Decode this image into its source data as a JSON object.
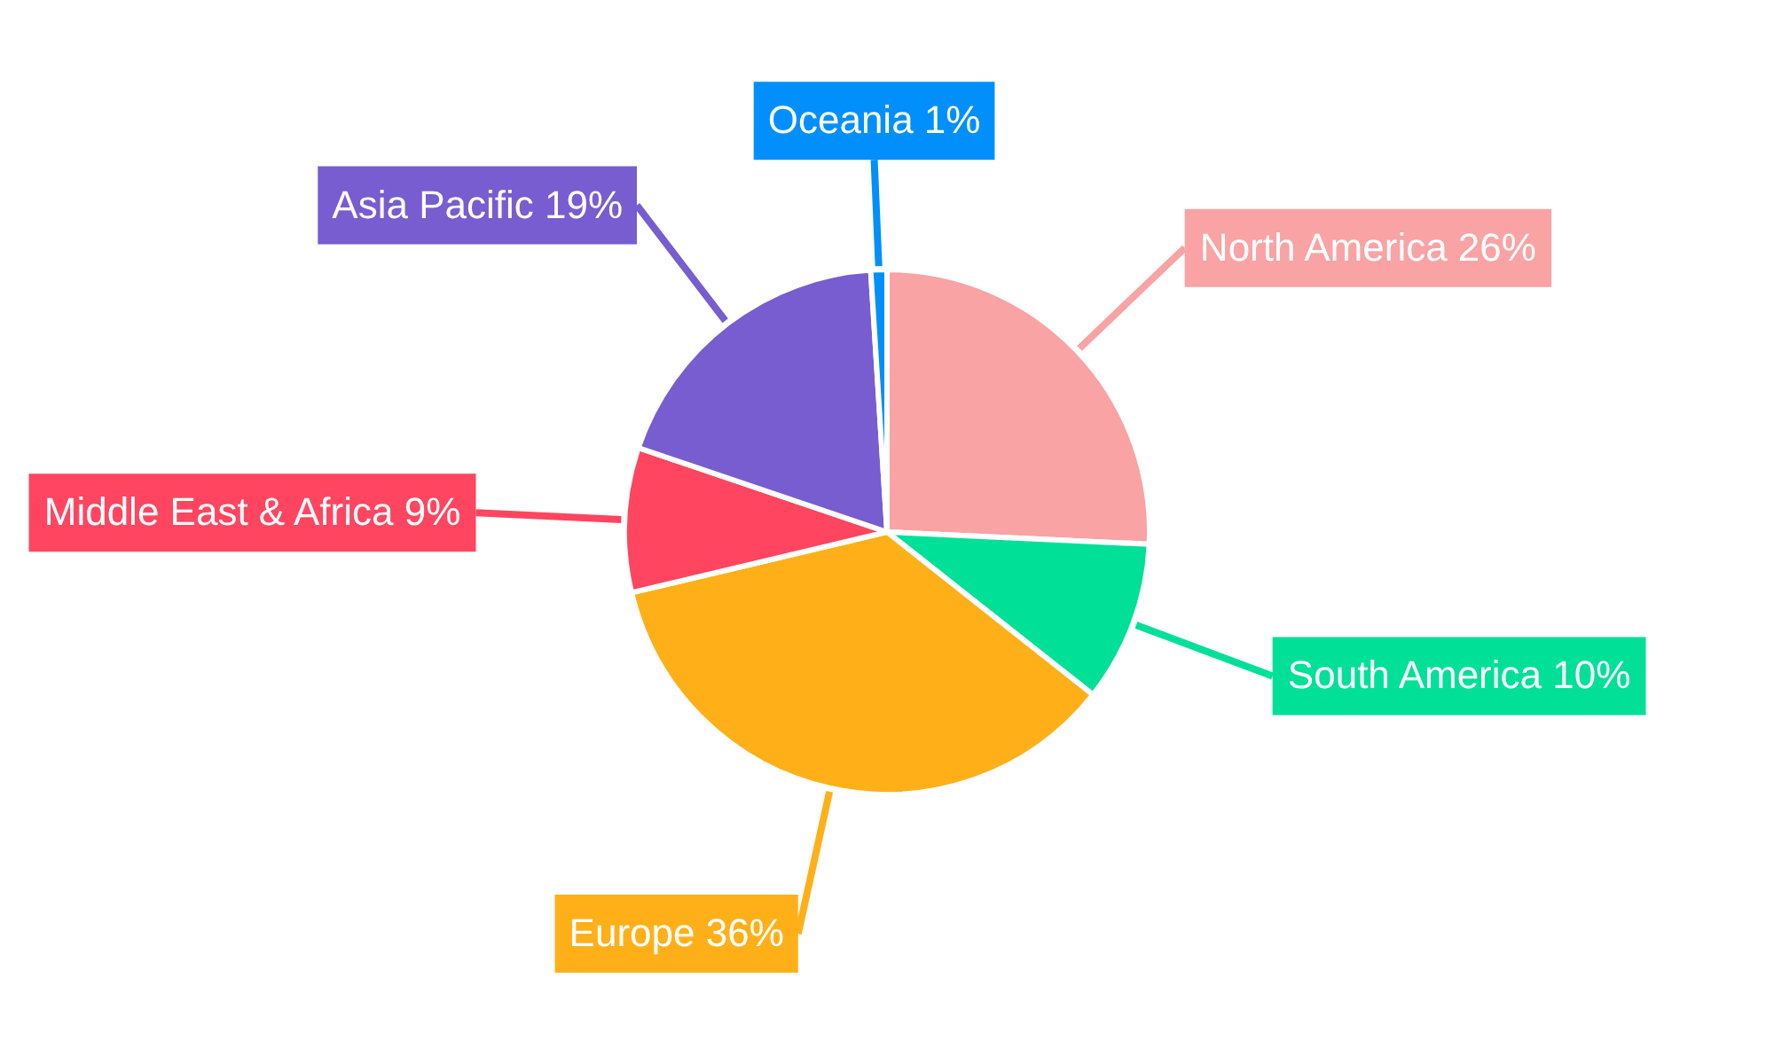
{
  "chart_data": {
    "type": "pie",
    "categories": [
      "North America",
      "South America",
      "Europe",
      "Middle East & Africa",
      "Asia Pacific",
      "Oceania"
    ],
    "values": [
      26,
      10,
      36,
      9,
      19,
      1
    ],
    "value_labels": [
      "26%",
      "10%",
      "36%",
      "9%",
      "19%",
      "1%"
    ],
    "colors": [
      "#f9a3a4",
      "#00e096",
      "#ffb019",
      "#ff4560",
      "#775dd0",
      "#008ffb"
    ]
  }
}
